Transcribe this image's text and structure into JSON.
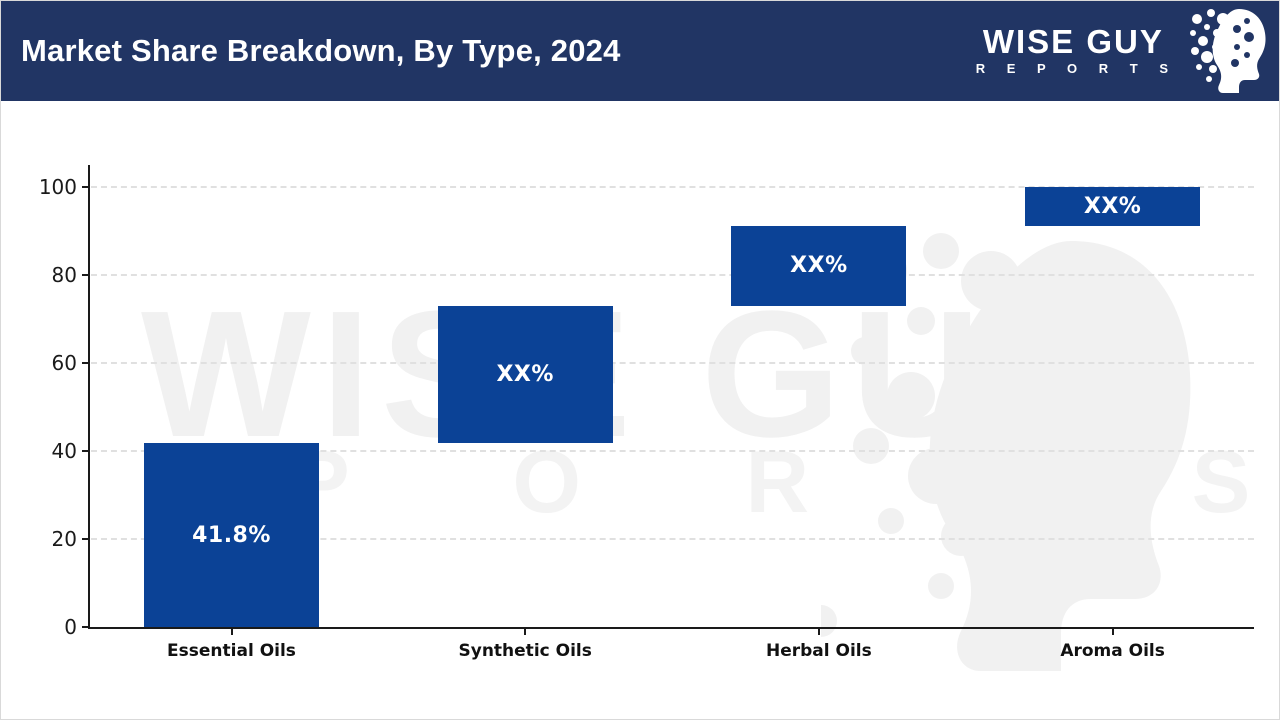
{
  "header": {
    "title": "Market Share Breakdown, By Type, 2024",
    "logo": {
      "name": "WISE GUY",
      "sub": "R E P O R T S"
    }
  },
  "watermark": {
    "line1": "WISE GUY",
    "line2": "P O R T S"
  },
  "chart_data": {
    "type": "bar",
    "subtype": "waterfall",
    "title": "Market Share Breakdown, By Type, 2024",
    "unit": "%",
    "categories": [
      "Essential Oils",
      "Synthetic Oils",
      "Herbal Oils",
      "Aroma Oils"
    ],
    "segments": [
      {
        "category": "Essential Oils",
        "start": 0,
        "end": 41.8,
        "label": "41.8%"
      },
      {
        "category": "Synthetic Oils",
        "start": 41.8,
        "end": 73.0,
        "label": "XX%"
      },
      {
        "category": "Herbal Oils",
        "start": 73.0,
        "end": 91.2,
        "label": "XX%"
      },
      {
        "category": "Aroma Oils",
        "start": 91.2,
        "end": 100.0,
        "label": "XX%"
      }
    ],
    "yticks": [
      0,
      20,
      40,
      60,
      80,
      100
    ],
    "ylim": [
      0,
      105
    ],
    "xlabel": "",
    "ylabel": "",
    "grid": "horizontal-dashed",
    "legend": "none"
  },
  "colors": {
    "header_bg": "#213564",
    "title_text": "#ffffff",
    "bar_fill": "#0b4296",
    "bar_label": "#ffffff",
    "axis": "#1a1a1a",
    "gridline": "#e0e0e0",
    "watermark": "#f1f1f1"
  }
}
